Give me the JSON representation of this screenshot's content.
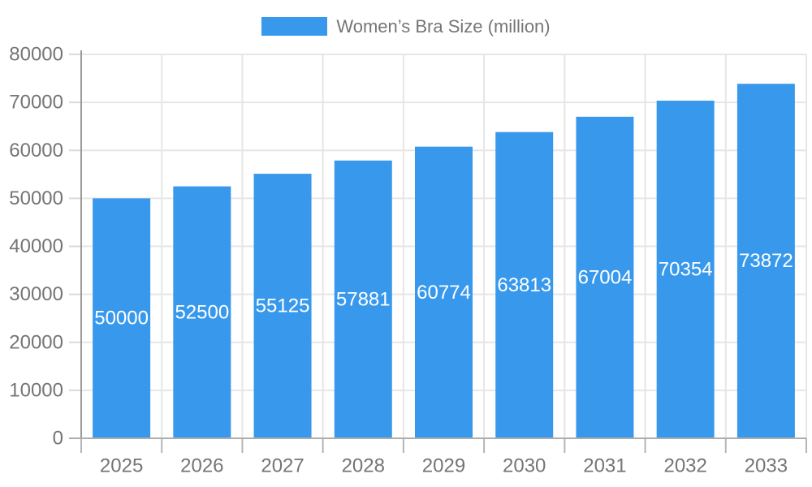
{
  "chart_data": {
    "type": "bar",
    "title": "Women’s Bra Size (million)",
    "categories": [
      "2025",
      "2026",
      "2027",
      "2028",
      "2029",
      "2030",
      "2031",
      "2032",
      "2033"
    ],
    "values": [
      50000,
      52500,
      55125,
      57881,
      60774,
      63813,
      67004,
      70354,
      73872
    ],
    "bar_labels": [
      "50000",
      "52500",
      "55125",
      "57881",
      "60774",
      "63813",
      "67004",
      "70354",
      "73872"
    ],
    "xlabel": "",
    "ylabel": "",
    "ylim": [
      0,
      80000
    ],
    "ytick_step": 10000,
    "yticks": [
      "0",
      "10000",
      "20000",
      "30000",
      "40000",
      "50000",
      "60000",
      "70000",
      "80000"
    ],
    "grid": true,
    "legend_position": "top",
    "colors": {
      "bar": "#3899EC",
      "grid": "#E6E6E6",
      "axis_line": "#999999",
      "baseline": "#ADADAD",
      "x_tick": "#B5B5B5",
      "y_tick": "#DADADA",
      "label_text": "#757575",
      "bar_label_text": "#FFFFFF",
      "background": "#FFFFFF"
    }
  }
}
